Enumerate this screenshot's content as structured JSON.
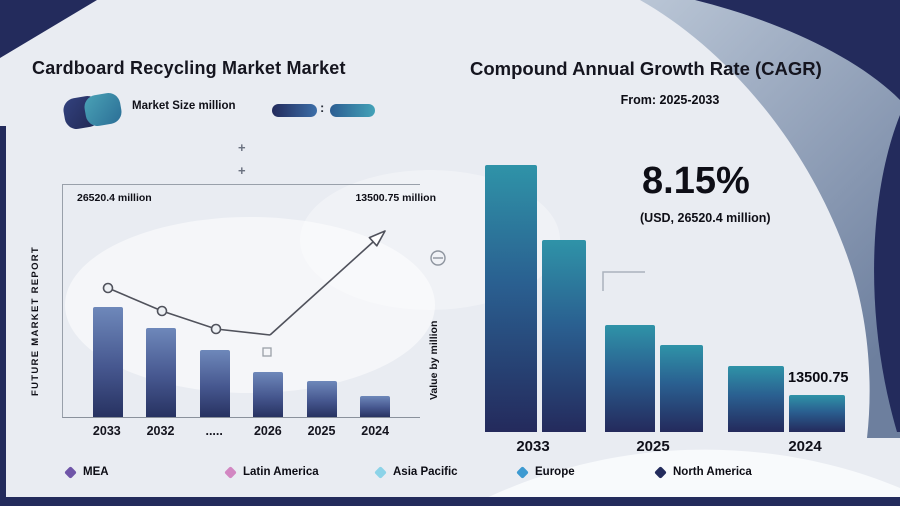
{
  "decorations": {
    "plus": "+",
    "pill_separator": ":"
  },
  "left_panel": {
    "title": "Cardboard Recycling Market Market",
    "legend_label": "Market Size million",
    "side_label": "FUTURE MARKET REPORT",
    "annotation_left": "26520.4 million",
    "annotation_right": "13500.75 million"
  },
  "right_panel": {
    "title": "Compound Annual Growth Rate (CAGR)",
    "subtitle": "From: 2025-2033",
    "cagr_value": "8.15%",
    "cagr_note": "(USD, 26520.4 million)",
    "ylabel": "Value by million",
    "annotation": "13500.75"
  },
  "legend": {
    "items": [
      {
        "label": "MEA",
        "color": "#6f55a8"
      },
      {
        "label": "Latin America",
        "color": "#d287c2"
      },
      {
        "label": "Asia Pacific",
        "color": "#8cd3e8"
      },
      {
        "label": "Europe",
        "color": "#3d9ad1"
      },
      {
        "label": "North America",
        "color": "#232b5c"
      }
    ]
  },
  "colors": {
    "accent_navy": "#232b5c",
    "accent_teal": "#2f93a8",
    "background": "#e9ecf2"
  },
  "chart_data": [
    {
      "type": "bar",
      "title": "Cardboard Recycling Market — Market Size by year",
      "categories": [
        "2033",
        "2032",
        ".....",
        "2026",
        "2025",
        "2024"
      ],
      "values": [
        26520.4,
        23400,
        20200,
        17000,
        15800,
        13500.75
      ],
      "ylabel": "Market Size million",
      "axis_range": [
        10500,
        26520.4
      ],
      "grid": false,
      "annotations": [
        "26520.4 million",
        "13500.75 million"
      ],
      "notes": "Only 2033 (26520.4 million) and 2024 (13500.75 million) are labeled; other values estimated from bar heights. Descending trend line with arrow rising to the right."
    },
    {
      "type": "bar",
      "title": "Compound Annual Growth Rate (CAGR) From: 2025-2033",
      "categories": [
        "2033",
        "2025",
        "2024"
      ],
      "series": [
        {
          "name": "series-1",
          "values": [
            26520.4,
            10600,
            6600
          ]
        },
        {
          "name": "series-2",
          "values": [
            19100,
            8650,
            3700
          ]
        }
      ],
      "ylabel": "Value by million",
      "axis_range": [
        0,
        26520.4
      ],
      "grid": false,
      "annotations": [
        "8.15%",
        "(USD, 26520.4 million)",
        "13500.75"
      ],
      "notes": "CAGR 8.15%; values estimated from bar heights except annotated 13500.75 near 2024."
    }
  ]
}
